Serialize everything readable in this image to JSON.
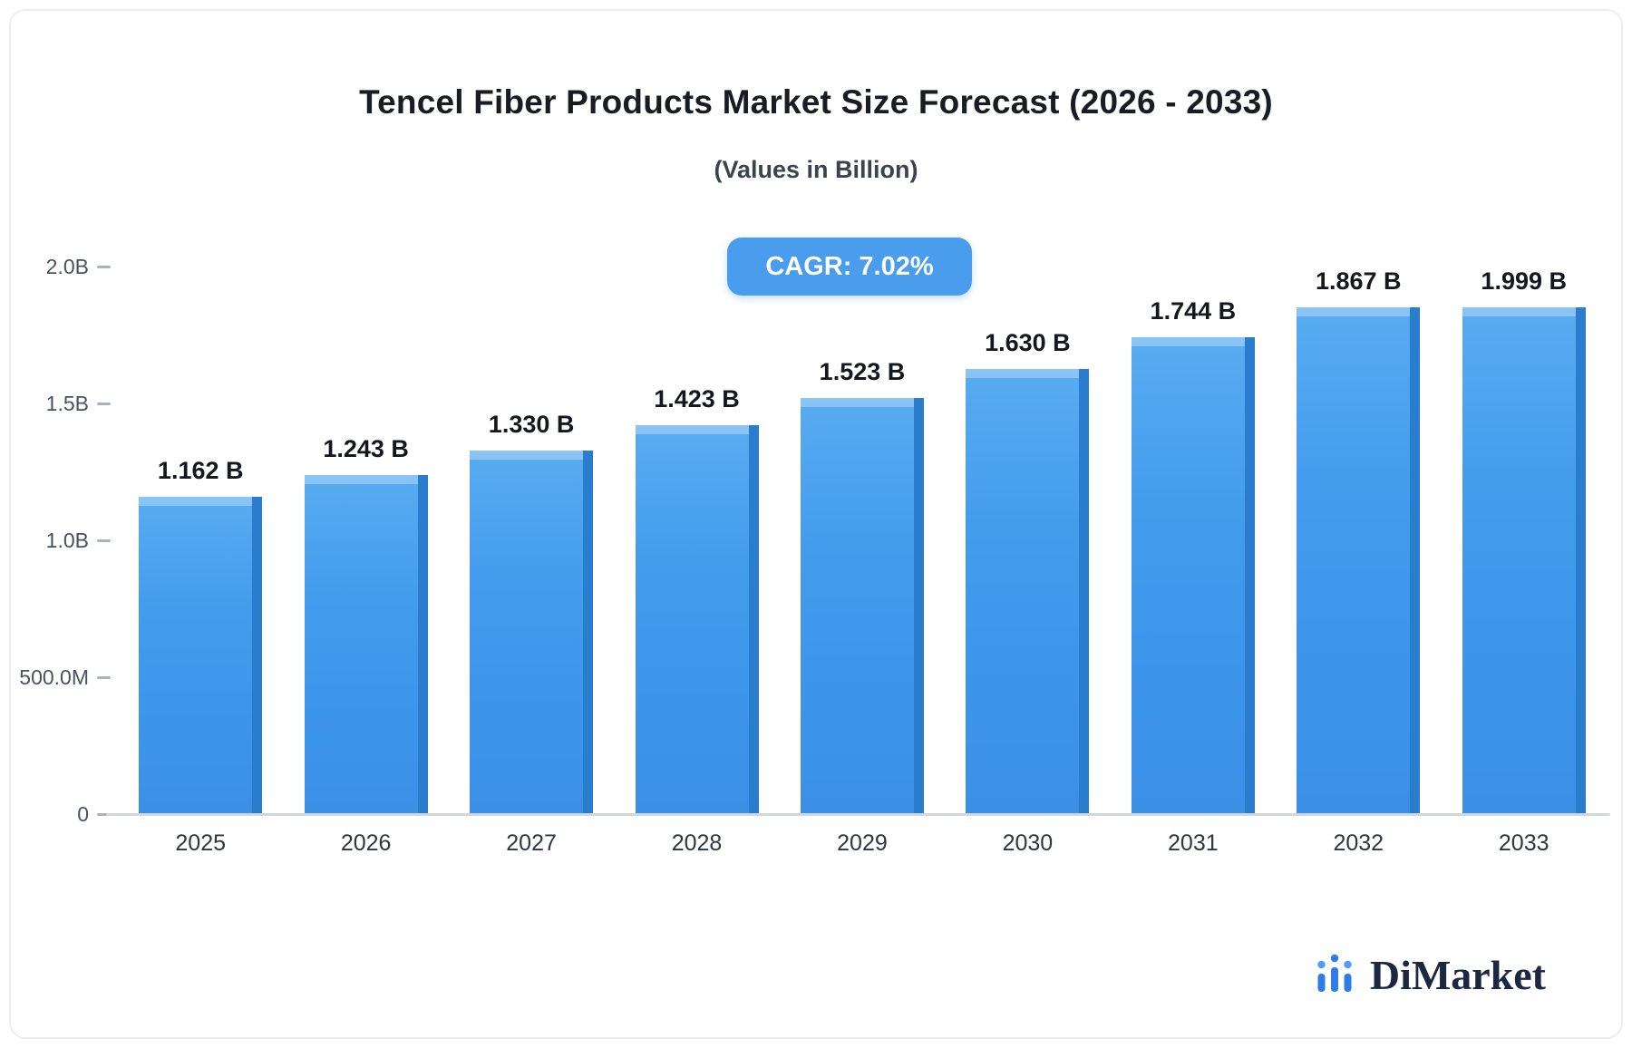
{
  "header": {
    "title": "Tencel Fiber Products Market Size Forecast (2026 - 2033)",
    "subtitle": "(Values in Billion)",
    "cagr_label": "CAGR: 7.02%"
  },
  "chart_data": {
    "type": "bar",
    "title": "Tencel Fiber Products Market Size Forecast (2026 - 2033)",
    "subtitle": "(Values in Billion)",
    "categories": [
      "2025",
      "2026",
      "2027",
      "2028",
      "2029",
      "2030",
      "2031",
      "2032",
      "2033"
    ],
    "values": [
      1.162,
      1.243,
      1.33,
      1.423,
      1.523,
      1.63,
      1.744,
      1.867,
      1.999
    ],
    "value_labels": [
      "1.162 B",
      "1.243 B",
      "1.330 B",
      "1.423 B",
      "1.523 B",
      "1.630 B",
      "1.744 B",
      "1.867 B",
      "1.999 B"
    ],
    "unit": "B",
    "xlabel": "",
    "ylabel": "",
    "ylim": [
      0,
      2.0
    ],
    "yticks": [
      {
        "label": "2.0B",
        "value": 2.0
      },
      {
        "label": "1.5B",
        "value": 1.5
      },
      {
        "label": "1.0B",
        "value": 1.0
      },
      {
        "label": "500.0M",
        "value": 0.5
      },
      {
        "label": "0",
        "value": 0
      }
    ],
    "annotation": "CAGR: 7.02%",
    "grid": false,
    "legend": false
  },
  "footer": {
    "brand": "DiMarket"
  },
  "colors": {
    "bar_top": "#58acf1",
    "bar_bottom": "#3b90e6",
    "bar_side": "#2a7ccd",
    "badge_bg": "#4a9ded",
    "title_color": "#191c23",
    "axis_color": "#4a5260",
    "baseline_color": "#d2d7dd",
    "brand_blue": "#2d7de6",
    "brand_navy": "#1c2742"
  }
}
